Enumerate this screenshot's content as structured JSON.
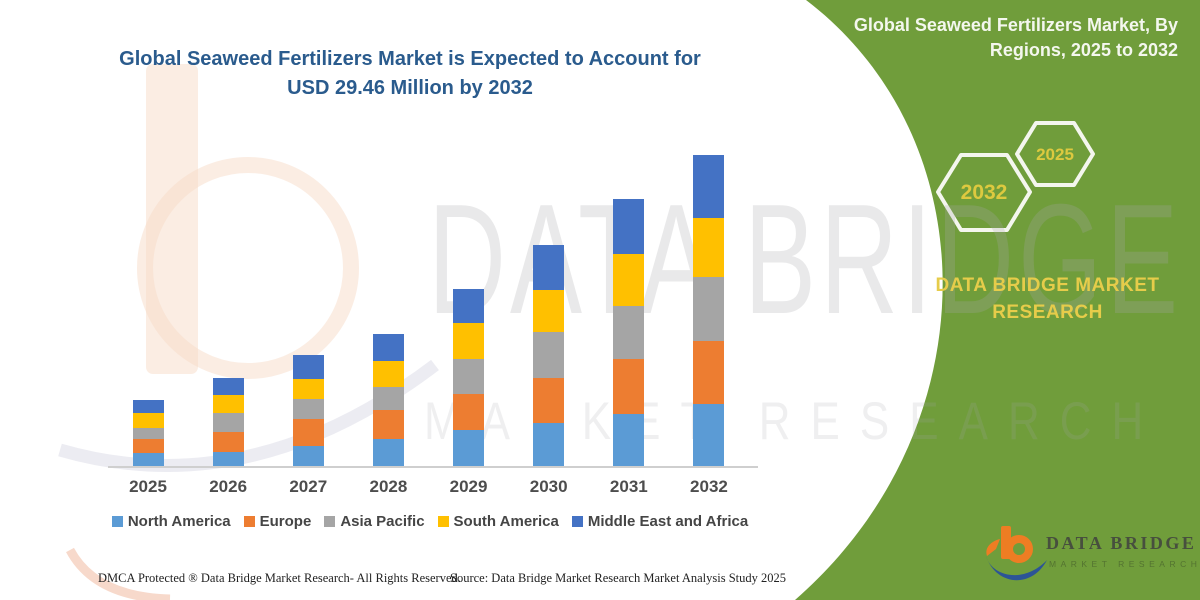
{
  "header": {
    "title_line1": "Global Seaweed Fertilizers Market is Expected to Account for",
    "title_line2": "USD 29.46 Million by 2032"
  },
  "side_panel": {
    "title_line1": "Global Seaweed Fertilizers Market, By",
    "title_line2": "Regions, 2025 to 2032",
    "hexagons": {
      "large": {
        "label": "2032"
      },
      "small": {
        "label": "2025"
      }
    },
    "brand_line1": "DATA BRIDGE MARKET",
    "brand_line2": "RESEARCH"
  },
  "watermark": {
    "big_text": "DATA BRIDGE",
    "sub_text": "MARKET RESEARCH"
  },
  "logo": {
    "wordmark": "DATA BRIDGE",
    "subtext": "MARKET RESEARCH"
  },
  "footer": {
    "left_text": "DMCA Protected ® Data Bridge Market Research-  All Rights Reserved.",
    "source_text": "Source: Data Bridge Market Research  Market Analysis Study 2025"
  },
  "colors": {
    "green_panel": "#709d3b",
    "title_blue": "#2a5b8d",
    "hex_label_yellow": "#ddc93f",
    "brand_yellow": "#e6cc4a",
    "axis_label_gray": "#4d4d4d",
    "logo_orange": "#ee7d23",
    "logo_blue": "#2c5496"
  },
  "chart_data": {
    "type": "bar",
    "stacked": true,
    "title": "Global Seaweed Fertilizers Market is Expected to Account for USD 29.46 Million by 2032",
    "unit": "USD Million",
    "categories": [
      "2025",
      "2026",
      "2027",
      "2028",
      "2029",
      "2030",
      "2031",
      "2032"
    ],
    "series": [
      {
        "name": "North America",
        "color": "#5B9BD5",
        "values": [
          1.26,
          1.33,
          1.89,
          2.53,
          3.38,
          4.1,
          4.95,
          5.84
        ]
      },
      {
        "name": "Europe",
        "color": "#ED7D31",
        "values": [
          1.26,
          1.92,
          2.53,
          2.75,
          3.41,
          4.26,
          5.15,
          6.0
        ]
      },
      {
        "name": "Asia Pacific",
        "color": "#A5A5A5",
        "values": [
          1.11,
          1.74,
          1.89,
          2.21,
          3.32,
          4.36,
          5.05,
          6.06
        ]
      },
      {
        "name": "South America",
        "color": "#FFC000",
        "values": [
          1.42,
          1.73,
          1.95,
          2.46,
          3.47,
          3.92,
          4.95,
          5.56
        ]
      },
      {
        "name": "Middle East and Africa",
        "color": "#4472C4",
        "values": [
          1.2,
          1.61,
          2.25,
          2.59,
          3.22,
          4.29,
          5.15,
          6.0
        ]
      }
    ],
    "totals": [
      6.25,
      8.33,
      10.51,
      12.54,
      16.8,
      20.93,
      25.25,
      29.46
    ],
    "ylim": [
      0,
      31
    ],
    "xlabel": "",
    "ylabel": "",
    "grid": false,
    "y_axis_visible": false,
    "legend_position": "bottom"
  }
}
